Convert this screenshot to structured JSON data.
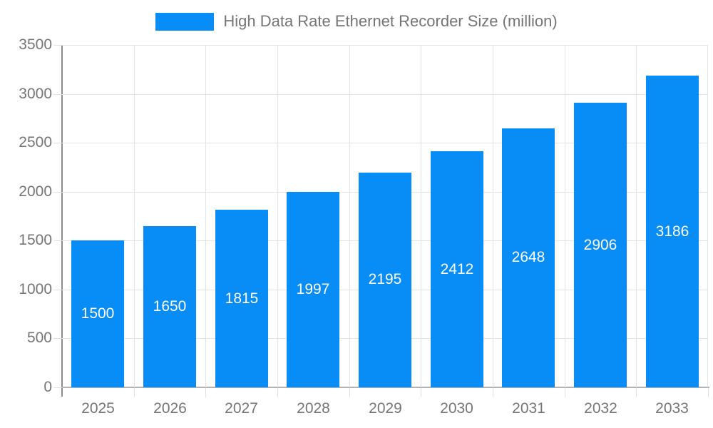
{
  "chart_data": {
    "type": "bar",
    "title": "High Data Rate Ethernet Recorder Size (million)",
    "categories": [
      "2025",
      "2026",
      "2027",
      "2028",
      "2029",
      "2030",
      "2031",
      "2032",
      "2033"
    ],
    "values": [
      1500,
      1650,
      1815,
      1997,
      2195,
      2412,
      2648,
      2906,
      3186
    ],
    "value_labels": [
      "1500",
      "1650",
      "1815",
      "1997",
      "2195",
      "2412",
      "2648",
      "2906",
      "3186"
    ],
    "xlabel": "",
    "ylabel": "",
    "ylim": [
      0,
      3500
    ],
    "y_ticks": [
      0,
      500,
      1000,
      1500,
      2000,
      2500,
      3000,
      3500
    ],
    "grid": "both",
    "legend_position": "top-center",
    "colors": {
      "bar": "#088df6",
      "value_label": "#ffffff",
      "axis_text": "#757575",
      "title_text": "#757575",
      "gridline": "#e3e3e3",
      "tick": "#e0e0e0",
      "y_axis_line": "#8c8c8c",
      "x_axis_line": "#b3b3b3",
      "background": "#ffffff"
    }
  }
}
